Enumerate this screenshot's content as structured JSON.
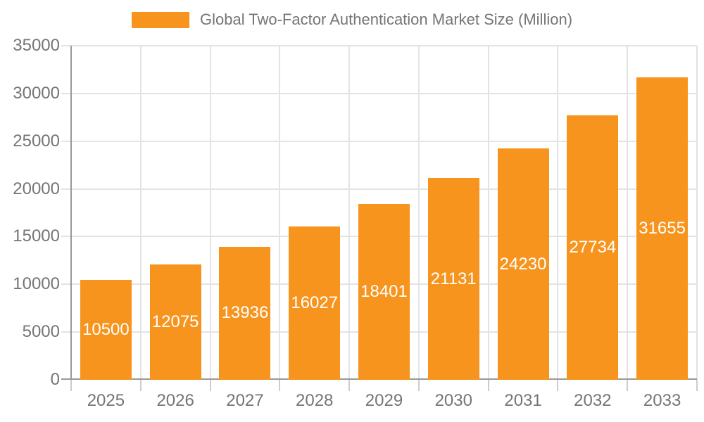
{
  "legend": {
    "label": "Global Two-Factor Authentication Market Size (Million)",
    "swatch_color": "#F7941E"
  },
  "chart_data": {
    "type": "bar",
    "title": "Global Two-Factor Authentication Market Size (Million)",
    "series_name": "Global Two-Factor Authentication Market Size (Million)",
    "categories": [
      "2025",
      "2026",
      "2027",
      "2028",
      "2029",
      "2030",
      "2031",
      "2032",
      "2033"
    ],
    "values": [
      10500,
      12075,
      13936,
      16027,
      18401,
      21131,
      24230,
      27734,
      31655
    ],
    "xlabel": "",
    "ylabel": "",
    "ylim": [
      0,
      35000
    ],
    "ytick_step": 5000,
    "yticks": [
      0,
      5000,
      10000,
      15000,
      20000,
      25000,
      30000,
      35000
    ],
    "grid": true,
    "legend_position": "top",
    "colors": {
      "bar": "#F7941E",
      "value_label": "#ffffff",
      "axis_text": "#757575",
      "gridline": "#e3e3e3",
      "axis_line": "#999999",
      "tick": "#cccccc"
    }
  }
}
